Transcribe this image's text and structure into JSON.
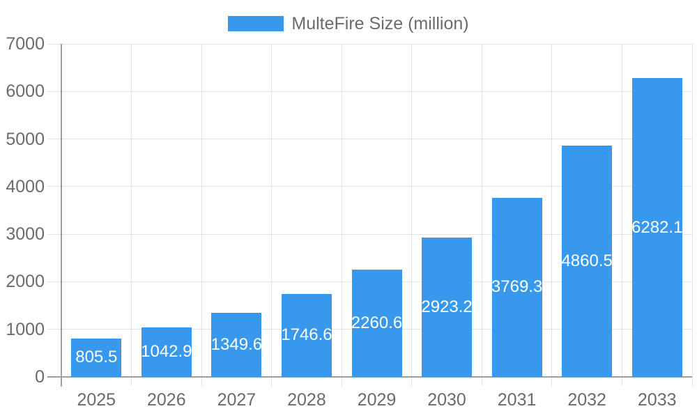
{
  "chart_data": {
    "type": "bar",
    "title": "",
    "legend": "MulteFire Size (million)",
    "legend_position": "top-center",
    "categories": [
      "2025",
      "2026",
      "2027",
      "2028",
      "2029",
      "2030",
      "2031",
      "2032",
      "2033"
    ],
    "series": [
      {
        "name": "MulteFire Size (million)",
        "values": [
          805.5,
          1042.9,
          1349.6,
          1746.6,
          2260.6,
          2923.2,
          3769.3,
          4860.5,
          6282.1
        ]
      }
    ],
    "value_labels": [
      "805.5",
      "1042.9",
      "1349.6",
      "1746.6",
      "2260.6",
      "2923.2",
      "3769.3",
      "4860.5",
      "6282.1"
    ],
    "xlabel": "",
    "ylabel": "",
    "ylim": [
      0,
      7000
    ],
    "ytick_step": 1000,
    "yticks": [
      "0",
      "1000",
      "2000",
      "3000",
      "4000",
      "5000",
      "6000",
      "7000"
    ],
    "grid": "on",
    "colors": {
      "bar": "#3899ec",
      "grid": "#e3e3e3",
      "axis": "#9e9e9e",
      "tick_label": "#6b6b6b",
      "legend_label": "#6b6b6b",
      "value_label": "#ffffff",
      "background": "#ffffff"
    }
  }
}
